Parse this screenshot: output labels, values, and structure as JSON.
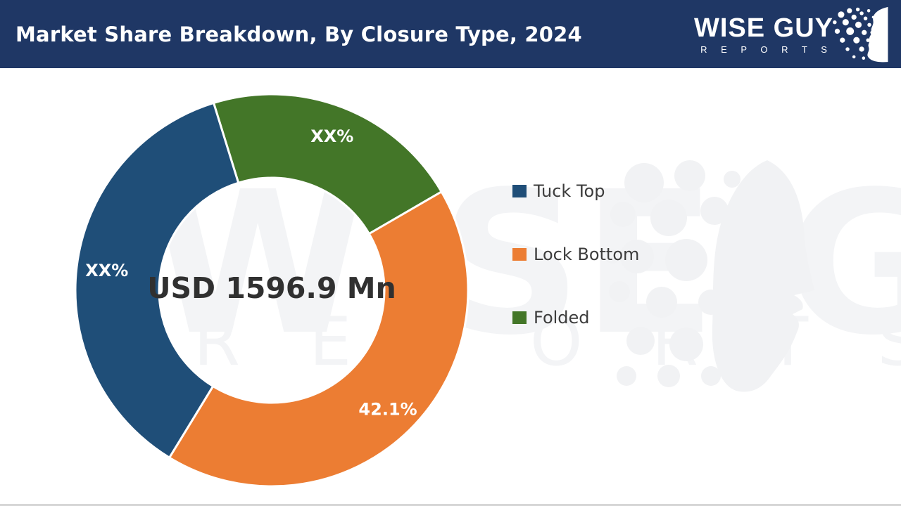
{
  "header": {
    "title": "Market Share Breakdown, By Closure Type, 2024",
    "bg_color": "#1F3765",
    "logo": {
      "line1": "WISE GUY",
      "line2": "R E P O R T S"
    }
  },
  "watermark": {
    "line1": "WISE GUY",
    "line2": "R E P O R T S"
  },
  "chart_data": {
    "type": "pie",
    "variant": "donut",
    "title": "Market Share Breakdown, By Closure Type, 2024",
    "center_label": "USD 1596.9 Mn",
    "direction": "clockwise",
    "start_angle_from_top_deg": -17.2,
    "segments": [
      {
        "name": "Folded",
        "display_label": "XX%",
        "value_pct_est": 21.4,
        "color": "#437628"
      },
      {
        "name": "Lock Bottom",
        "display_label": "42.1%",
        "value_pct_est": 42.1,
        "color": "#EC7D33"
      },
      {
        "name": "Tuck Top",
        "display_label": "XX%",
        "value_pct_est": 36.5,
        "color": "#1F4E78"
      }
    ],
    "legend": [
      {
        "label": "Tuck Top",
        "color": "#1F4E78"
      },
      {
        "label": "Lock Bottom",
        "color": "#EC7D33"
      },
      {
        "label": "Folded",
        "color": "#437628"
      }
    ],
    "legend_position": "right",
    "label_color": "#ffffff"
  }
}
